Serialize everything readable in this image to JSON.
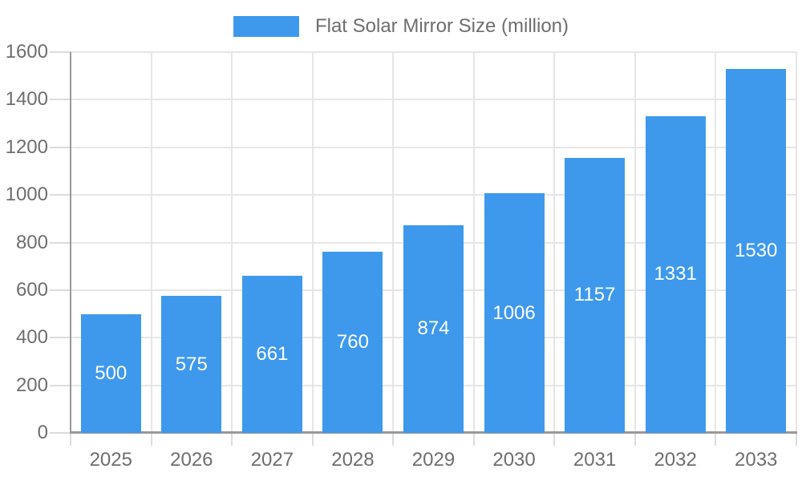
{
  "chart": {
    "legend_label": "Flat Solar Mirror Size (million)"
  },
  "colors": {
    "bar": "#3E99ED",
    "text": "#6E6E6E",
    "grid": "#E6E6E6",
    "tick": "#DCDCDC",
    "axis": "#999999",
    "value_label": "#FFFFFF",
    "background": "#FFFFFF"
  },
  "chart_data": {
    "type": "bar",
    "title": "Flat Solar Mirror Size (million)",
    "categories": [
      "2025",
      "2026",
      "2027",
      "2028",
      "2029",
      "2030",
      "2031",
      "2032",
      "2033"
    ],
    "values": [
      500,
      575,
      661,
      760,
      874,
      1006,
      1157,
      1331,
      1530
    ],
    "series": [
      {
        "name": "Flat Solar Mirror Size (million)",
        "values": [
          500,
          575,
          661,
          760,
          874,
          1006,
          1157,
          1331,
          1530
        ]
      }
    ],
    "xlabel": "",
    "ylabel": "",
    "ylim": [
      0,
      1600
    ],
    "ytick_step": 200,
    "yticks": [
      0,
      200,
      400,
      600,
      800,
      1000,
      1200,
      1400,
      1600
    ],
    "grid": true,
    "legend_position": "top-center",
    "value_labels": "inside-center"
  }
}
